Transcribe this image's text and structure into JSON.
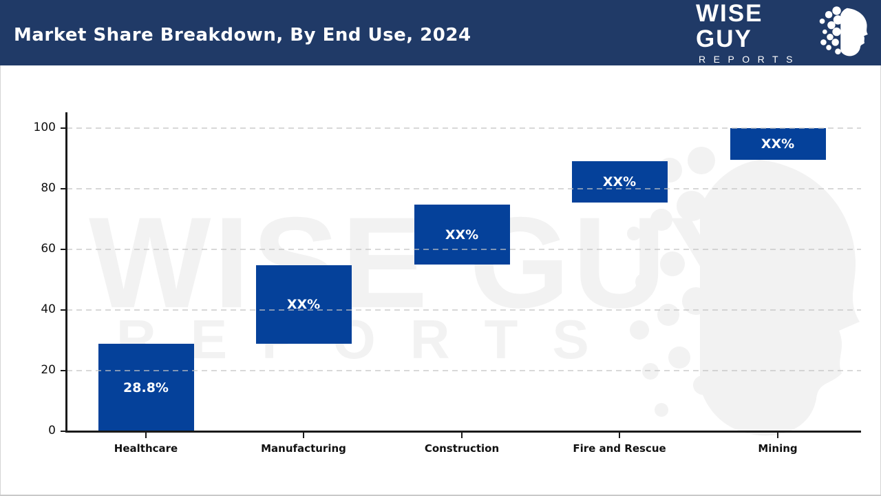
{
  "header": {
    "title": "Market Share Breakdown, By End Use, 2024",
    "logo": {
      "line1": "WISE GUY",
      "line2": "REPORTS"
    }
  },
  "watermark": {
    "line1": "WISE GUY",
    "line2": "REPORTS"
  },
  "chart_data": {
    "type": "bar",
    "subtype": "waterfall",
    "title": "Market Share Breakdown, By End Use, 2024",
    "categories": [
      "Healthcare",
      "Manufacturing",
      "Construction",
      "Fire and Rescue",
      "Mining"
    ],
    "segments": [
      {
        "category": "Healthcare",
        "start": 0,
        "end": 28.8,
        "label": "28.8%"
      },
      {
        "category": "Manufacturing",
        "start": 28.8,
        "end": 54.8,
        "label": "XX%"
      },
      {
        "category": "Construction",
        "start": 54.9,
        "end": 74.8,
        "label": "XX%"
      },
      {
        "category": "Fire and Rescue",
        "start": 75.4,
        "end": 89.1,
        "label": "XX%"
      },
      {
        "category": "Mining",
        "start": 89.5,
        "end": 99.9,
        "label": "XX%"
      }
    ],
    "y_ticks": [
      0,
      20,
      40,
      60,
      80,
      100
    ],
    "ylim": [
      0,
      108
    ],
    "xlabel": "",
    "ylabel": "",
    "grid": true,
    "grid_style": "dashed",
    "legend": false,
    "bar_color": "#05419a",
    "bar_label_color": "#ffffff",
    "axis_color": "#1a1a1a",
    "header_color": "#203a67"
  }
}
